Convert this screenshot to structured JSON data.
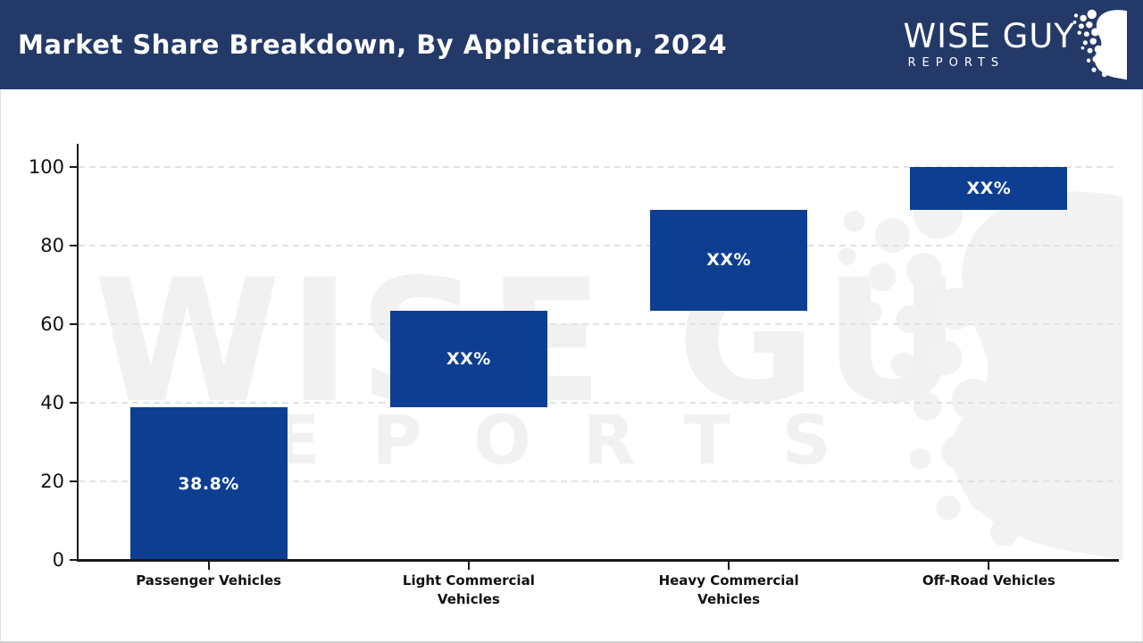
{
  "header": {
    "title": "Market Share Breakdown, By Application, 2024",
    "bg_color": "#233a68",
    "logo": {
      "wordmark": "WISE GUY",
      "subtext": "REPORTS"
    }
  },
  "watermark": {
    "line1": "WISE GUY",
    "line2": "REPORTS"
  },
  "chart_data": {
    "type": "bar",
    "subtype": "waterfall",
    "title": "Market Share Breakdown, By Application, 2024",
    "categories": [
      "Passenger Vehicles",
      "Light Commercial Vehicles",
      "Heavy Commercial Vehicles",
      "Off-Road Vehicles"
    ],
    "segments": [
      {
        "category": "Passenger Vehicles",
        "start": 0,
        "end": 38.8,
        "label": "38.8%"
      },
      {
        "category": "Light Commercial Vehicles",
        "start": 38.8,
        "end": 63.4,
        "label": "XX%"
      },
      {
        "category": "Heavy Commercial Vehicles",
        "start": 63.4,
        "end": 89.2,
        "label": "XX%"
      },
      {
        "category": "Off-Road Vehicles",
        "start": 89.2,
        "end": 100,
        "label": "XX%"
      }
    ],
    "yticks": [
      0,
      20,
      40,
      60,
      80,
      100
    ],
    "ylim": [
      0,
      105.5
    ],
    "grid": true,
    "legend": false,
    "xlabel": "",
    "ylabel": "",
    "bar_color": "#0d3e92",
    "bar_label_color": "#ffffff",
    "axis_color": "#1a1a1a",
    "grid_color": "#e2e2e2"
  }
}
